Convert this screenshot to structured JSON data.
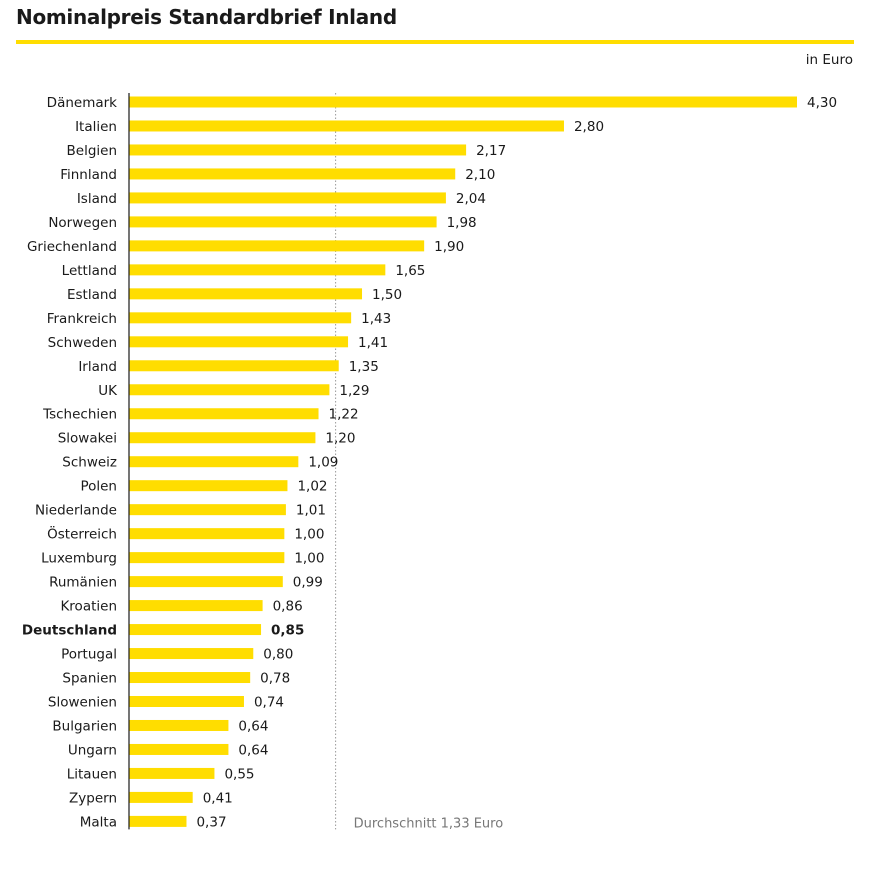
{
  "chart_data": {
    "type": "bar",
    "orientation": "horizontal",
    "title": "Nominalpreis Standardbrief Inland",
    "unit": "in Euro",
    "categories": [
      "Dänemark",
      "Italien",
      "Belgien",
      "Finnland",
      "Island",
      "Norwegen",
      "Griechenland",
      "Lettland",
      "Estland",
      "Frankreich",
      "Schweden",
      "Irland",
      "UK",
      "Tschechien",
      "Slowakei",
      "Schweiz",
      "Polen",
      "Niederlande",
      "Österreich",
      "Luxemburg",
      "Rumänien",
      "Kroatien",
      "Deutschland",
      "Portugal",
      "Spanien",
      "Slowenien",
      "Bulgarien",
      "Ungarn",
      "Litauen",
      "Zypern",
      "Malta"
    ],
    "values": [
      4.3,
      2.8,
      2.17,
      2.1,
      2.04,
      1.98,
      1.9,
      1.65,
      1.5,
      1.43,
      1.41,
      1.35,
      1.29,
      1.22,
      1.2,
      1.09,
      1.02,
      1.01,
      1.0,
      1.0,
      0.99,
      0.86,
      0.85,
      0.8,
      0.78,
      0.74,
      0.64,
      0.64,
      0.55,
      0.41,
      0.37
    ],
    "value_labels": [
      "4,30",
      "2,80",
      "2,17",
      "2,10",
      "2,04",
      "1,98",
      "1,90",
      "1,65",
      "1,50",
      "1,43",
      "1,41",
      "1,35",
      "1,29",
      "1,22",
      "1,20",
      "1,09",
      "1,02",
      "1,01",
      "1,00",
      "1,00",
      "0,99",
      "0,86",
      "0,85",
      "0,80",
      "0,78",
      "0,74",
      "0,64",
      "0,64",
      "0,55",
      "0,41",
      "0,37"
    ],
    "highlight": "Deutschland",
    "average": {
      "value": 1.33,
      "label": "Durchschnitt 1,33 Euro"
    },
    "bar_color": "#ffdd00",
    "xlim": [
      0,
      4.3
    ],
    "grid": false
  }
}
